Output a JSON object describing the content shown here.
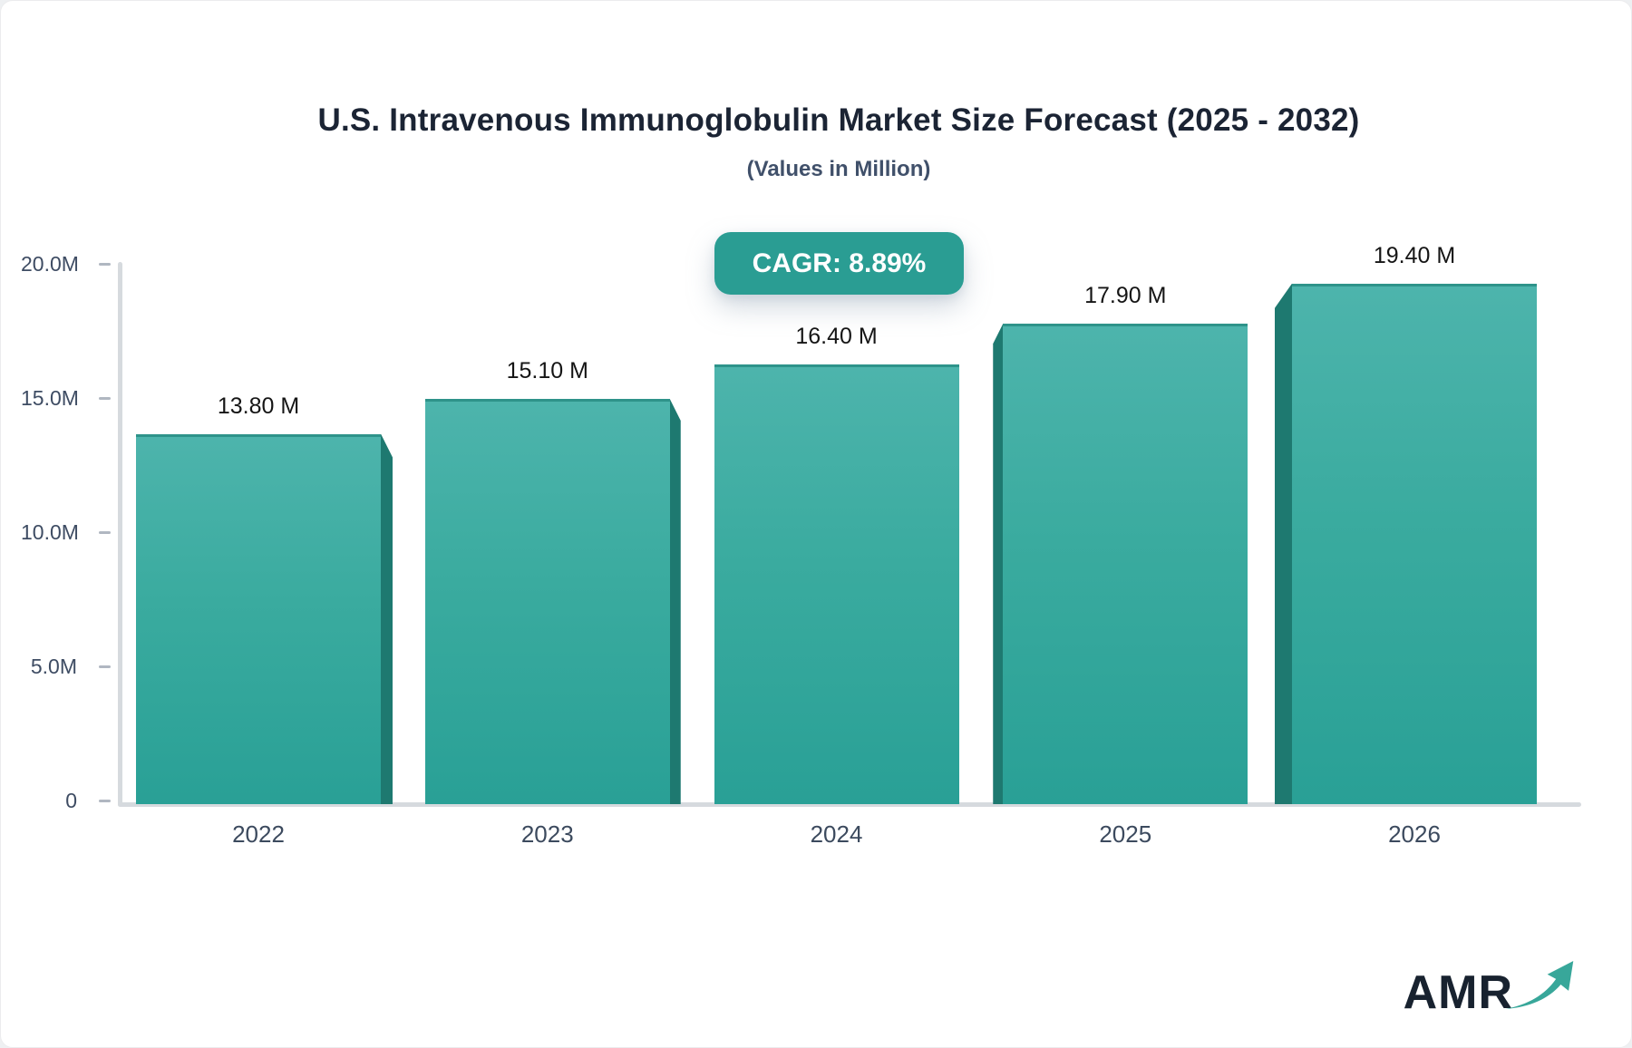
{
  "page": {
    "title": "U.S. Intravenous Immunoglobulin Market Size Forecast (2025 - 2032)",
    "subtitle": "(Values in Million)",
    "cagr_badge_label": "CAGR: 8.89%",
    "logo_text": "AMR"
  },
  "colors": {
    "bar_top": "#4db4ac",
    "bar_bottom": "#29a096",
    "bar_side_shadow": "#1e7970",
    "bar_top_edge": "#2e938a",
    "badge_background": "#2a9d93",
    "badge_text": "#ffffff",
    "axis_line": "#d6dade",
    "tick_label": "#3e4c63",
    "value_label": "#151515",
    "title_text": "#1b2434",
    "logo_text": "#18222f",
    "logo_arrow": "#38a79a"
  },
  "chart_data": {
    "type": "bar",
    "title": "U.S. Intravenous Immunoglobulin Market Size Forecast (2025 - 2032)",
    "subtitle": "(Values in Million)",
    "annotation": "CAGR: 8.89%",
    "cagr_percent": 8.89,
    "categories": [
      "2022",
      "2023",
      "2024",
      "2025",
      "2026"
    ],
    "values": [
      13.8,
      15.1,
      16.4,
      17.9,
      19.4
    ],
    "value_labels": [
      "13.80 M",
      "15.10 M",
      "16.40 M",
      "17.90 M",
      "19.40 M"
    ],
    "xlabel": "",
    "ylabel": "",
    "ylim": [
      0,
      20
    ],
    "yticks": [
      {
        "label": "20.0M",
        "value": 20
      },
      {
        "label": "15.0M",
        "value": 15
      },
      {
        "label": "10.0M",
        "value": 10
      },
      {
        "label": "5.0M",
        "value": 5
      },
      {
        "label": "0",
        "value": 0
      }
    ],
    "grid": false,
    "legend": false,
    "bar_style": "3d-bevel, side shadows face away from center column"
  }
}
